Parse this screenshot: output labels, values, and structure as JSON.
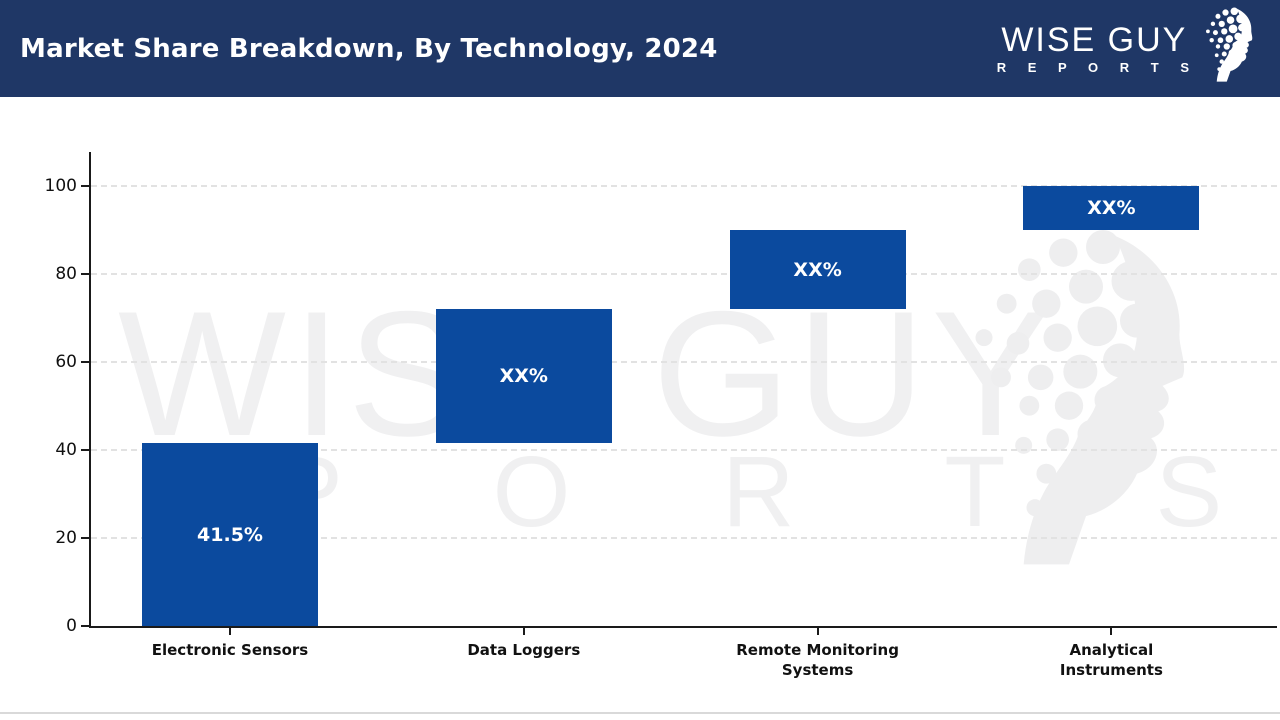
{
  "header": {
    "title": "Market Share Breakdown, By Technology, 2024",
    "logo": {
      "line1": "WISE GUY",
      "line2": "REPORTS"
    }
  },
  "watermark": {
    "line1": "WISE GUY",
    "line2": "PORTS"
  },
  "colors": {
    "header_bg": "#1f3766",
    "bar_blue": "#0b4a9e",
    "watermark_gray": "#f0f0f1",
    "gridline_gray": "#e2e2e2",
    "axis_black": "#1a1a1a"
  },
  "chart_data": {
    "type": "bar",
    "subtype": "waterfall",
    "title": "Market Share Breakdown, By Technology, 2024",
    "categories": [
      "Electronic Sensors",
      "Data Loggers",
      "Remote Monitoring Systems",
      "Analytical Instruments"
    ],
    "category_lines": [
      [
        "Electronic Sensors"
      ],
      [
        "Data Loggers"
      ],
      [
        "Remote Monitoring",
        "Systems"
      ],
      [
        "Analytical",
        "Instruments"
      ]
    ],
    "bars": [
      {
        "label": "41.5%",
        "start": 0,
        "end": 41.5
      },
      {
        "label": "XX%",
        "start": 41.5,
        "end": 72
      },
      {
        "label": "XX%",
        "start": 72,
        "end": 90
      },
      {
        "label": "XX%",
        "start": 90,
        "end": 100
      }
    ],
    "y_ticks": [
      0,
      20,
      40,
      60,
      80,
      100
    ],
    "ylim": [
      0,
      107.5
    ],
    "xlabel": "",
    "ylabel": "",
    "grid": "horizontal-dashed",
    "legend": "none"
  }
}
